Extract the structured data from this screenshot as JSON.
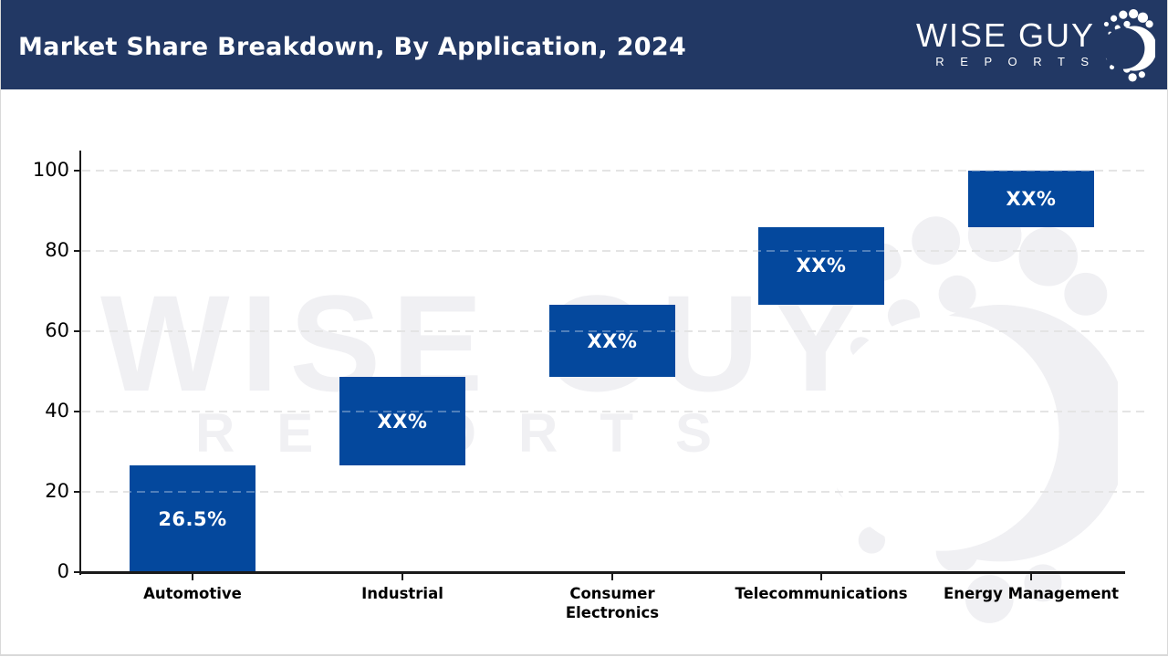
{
  "header": {
    "title": "Market Share Breakdown, By Application, 2024",
    "bg_color": "#223864",
    "logo": {
      "line1": "WISE GUY",
      "line2": "R E P O R T S"
    }
  },
  "watermark": {
    "line1": "WISE GUY",
    "line2": "REPORTS"
  },
  "chart_data": {
    "type": "bar",
    "variant": "waterfall",
    "title": "Market Share Breakdown, By Application, 2024",
    "xlabel": "",
    "ylabel": "",
    "ylim": [
      0,
      105
    ],
    "yticks": [
      0,
      20,
      40,
      60,
      80,
      100
    ],
    "grid": {
      "axis": "y",
      "style": "dashed",
      "color": "#d8d8d8"
    },
    "bar_color": "#04489d",
    "bar_label_color": "#ffffff",
    "axis_color": "#1a1a1a",
    "categories": [
      [
        "Automotive"
      ],
      [
        "Industrial"
      ],
      [
        "Consumer",
        "Electronics"
      ],
      [
        "Telecommunications"
      ],
      [
        "Energy Management"
      ]
    ],
    "segments": [
      {
        "category": "Automotive",
        "from": 0,
        "to": 26.5,
        "label": "26.5%"
      },
      {
        "category": "Industrial",
        "from": 26.5,
        "to": 48.6,
        "label": "XX%"
      },
      {
        "category": "Consumer Electronics",
        "from": 48.6,
        "to": 66.5,
        "label": "XX%"
      },
      {
        "category": "Telecommunications",
        "from": 66.5,
        "to": 86,
        "label": "XX%"
      },
      {
        "category": "Energy Management",
        "from": 86,
        "to": 100,
        "label": "XX%"
      }
    ]
  }
}
